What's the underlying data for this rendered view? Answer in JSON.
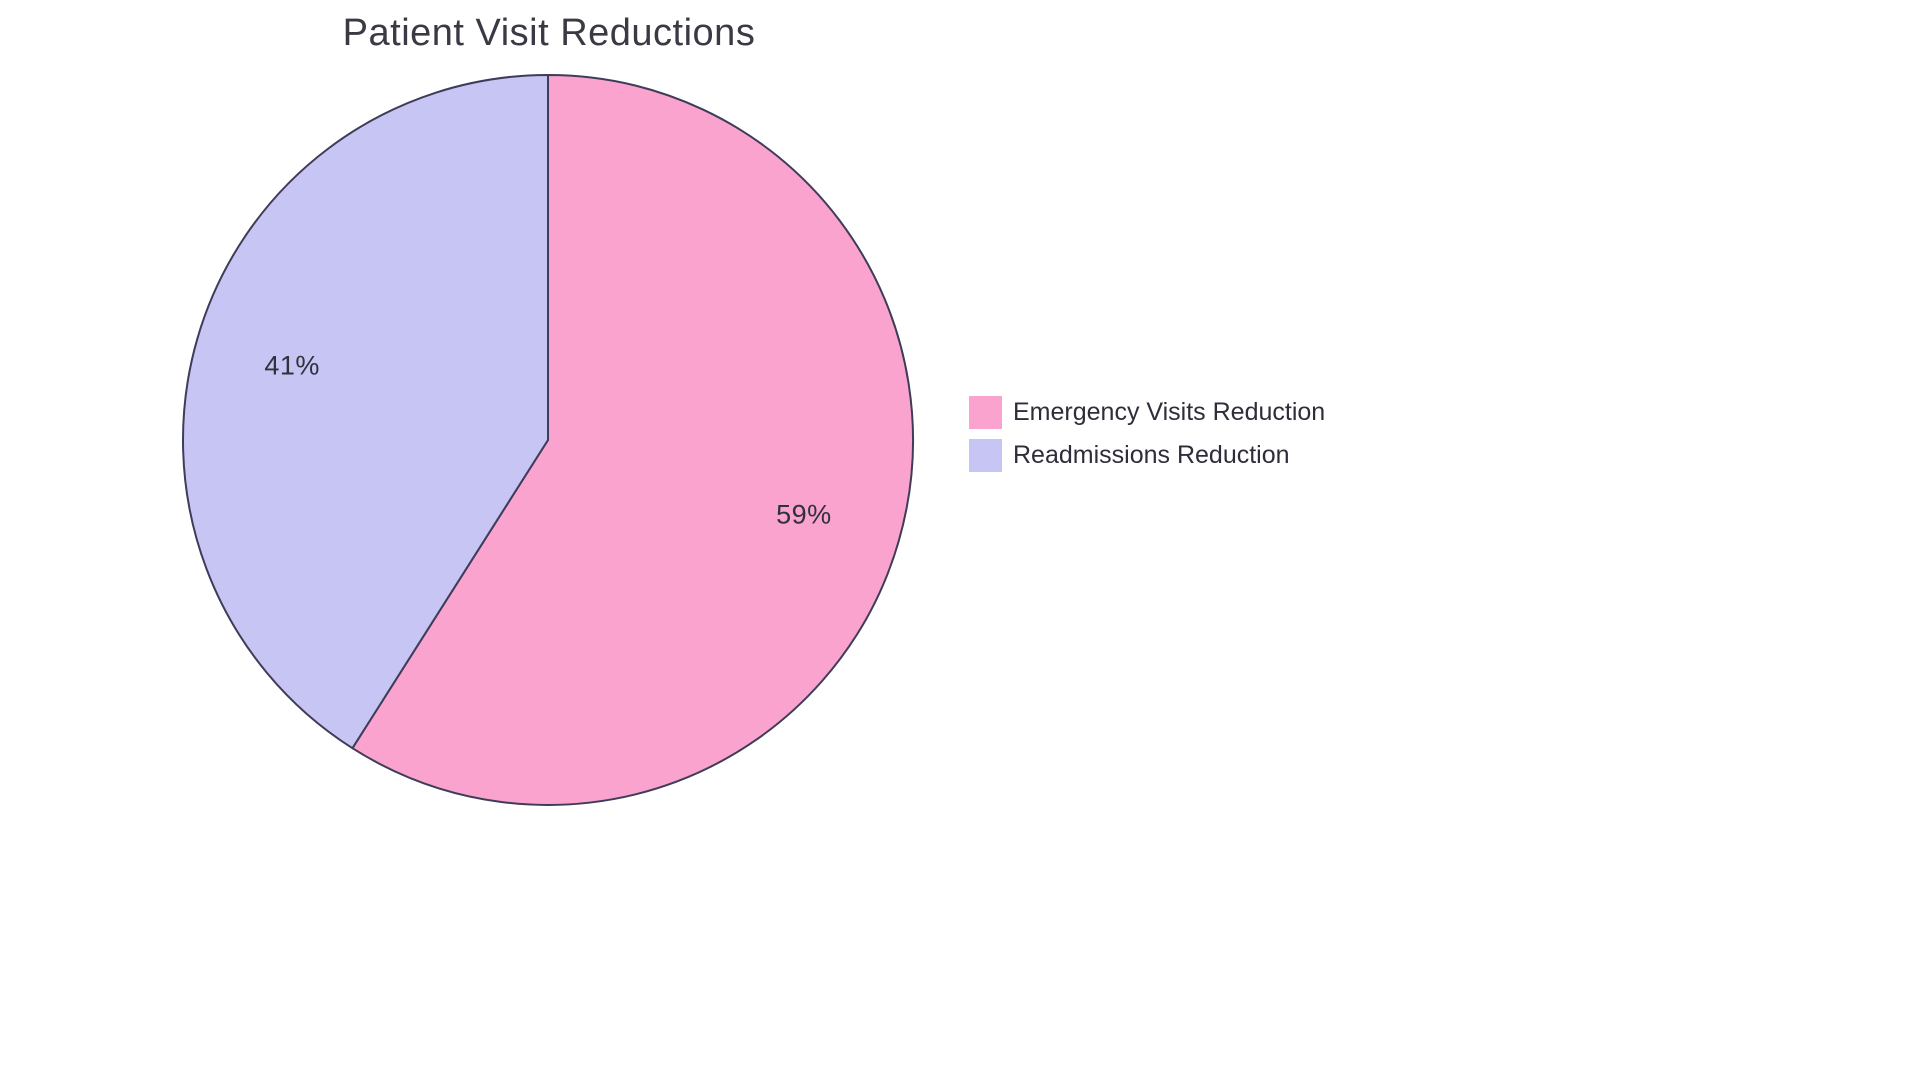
{
  "chart_data": {
    "type": "pie",
    "title": "Patient Visit Reductions",
    "legend_position": "right",
    "start_angle_deg": 0,
    "direction": "clockwise",
    "stroke_color": "#3f3c59",
    "background_color": "#ffffff",
    "slices": [
      {
        "label": "Emergency Visits Reduction",
        "value": 59,
        "pct_label": "59%",
        "color": "#f9a3ce"
      },
      {
        "label": "Readmissions Reduction",
        "value": 41,
        "pct_label": "41%",
        "color": "#c7c5f3"
      }
    ]
  }
}
